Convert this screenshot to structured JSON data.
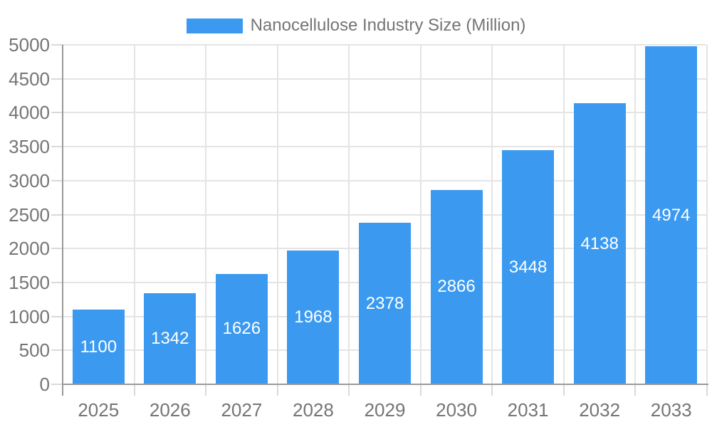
{
  "chart_data": {
    "type": "bar",
    "title": "Nanocellulose Industry Size (Million)",
    "categories": [
      "2025",
      "2026",
      "2027",
      "2028",
      "2029",
      "2030",
      "2031",
      "2032",
      "2033"
    ],
    "values": [
      1100,
      1342,
      1626,
      1968,
      2378,
      2866,
      3448,
      4138,
      4974
    ],
    "xlabel": "",
    "ylabel": "",
    "ylim": [
      0,
      5000
    ],
    "ytick_step": 500,
    "grid": true,
    "legend_position": "top",
    "value_label_position": "inside-center"
  },
  "legend": {
    "label": "Nanocellulose Industry Size (Million)"
  },
  "colors": {
    "bar": "#3b9af0",
    "grid": "#e4e4e4",
    "tick": "#d9d9d9",
    "axis": "#9a9a9a",
    "label_text": "#757575",
    "value_text": "#ffffff",
    "background": "#ffffff"
  }
}
